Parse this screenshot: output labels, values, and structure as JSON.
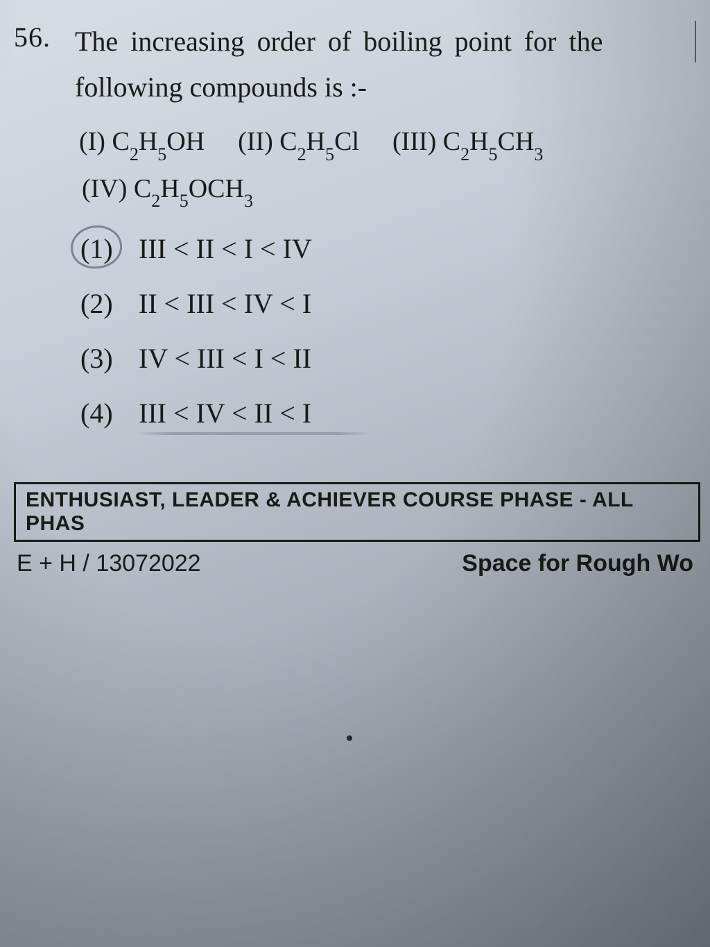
{
  "question": {
    "number": "56.",
    "text_line1": "The increasing order of boiling point for the",
    "text_line2": "following compounds is :-",
    "compounds": {
      "i_label": "(I) ",
      "i_formula_parts": [
        "C",
        "2",
        "H",
        "5",
        "OH"
      ],
      "ii_label": "(II) ",
      "ii_formula_parts": [
        "C",
        "2",
        "H",
        "5",
        "Cl"
      ],
      "iii_label": "(III) ",
      "iii_formula_parts": [
        "C",
        "2",
        "H",
        "5",
        "CH",
        "3"
      ],
      "iv_label": "(IV) ",
      "iv_formula_parts": [
        "C",
        "2",
        "H",
        "5",
        "OCH",
        "3"
      ]
    },
    "options": {
      "opt1_num": "(1)",
      "opt1_text": "III < II < I < IV",
      "opt2_num": "(2)",
      "opt2_text": "II < III < IV < I",
      "opt3_num": "(3)",
      "opt3_text": "IV < III < I < II",
      "opt4_num": "(4)",
      "opt4_text": "III < IV < II < I"
    },
    "circled_option": 1,
    "underlined_option": 4
  },
  "footer": {
    "box_text": "ENTHUSIAST, LEADER & ACHIEVER COURSE PHASE - ALL PHAS",
    "code": "E + H / 13072022",
    "space_label": "Space for Rough Wo"
  },
  "colors": {
    "text": "#1a1a1a",
    "paper_light": "#d8dce4",
    "paper_dark": "#888d98",
    "circle_mark": "#5a6478"
  }
}
